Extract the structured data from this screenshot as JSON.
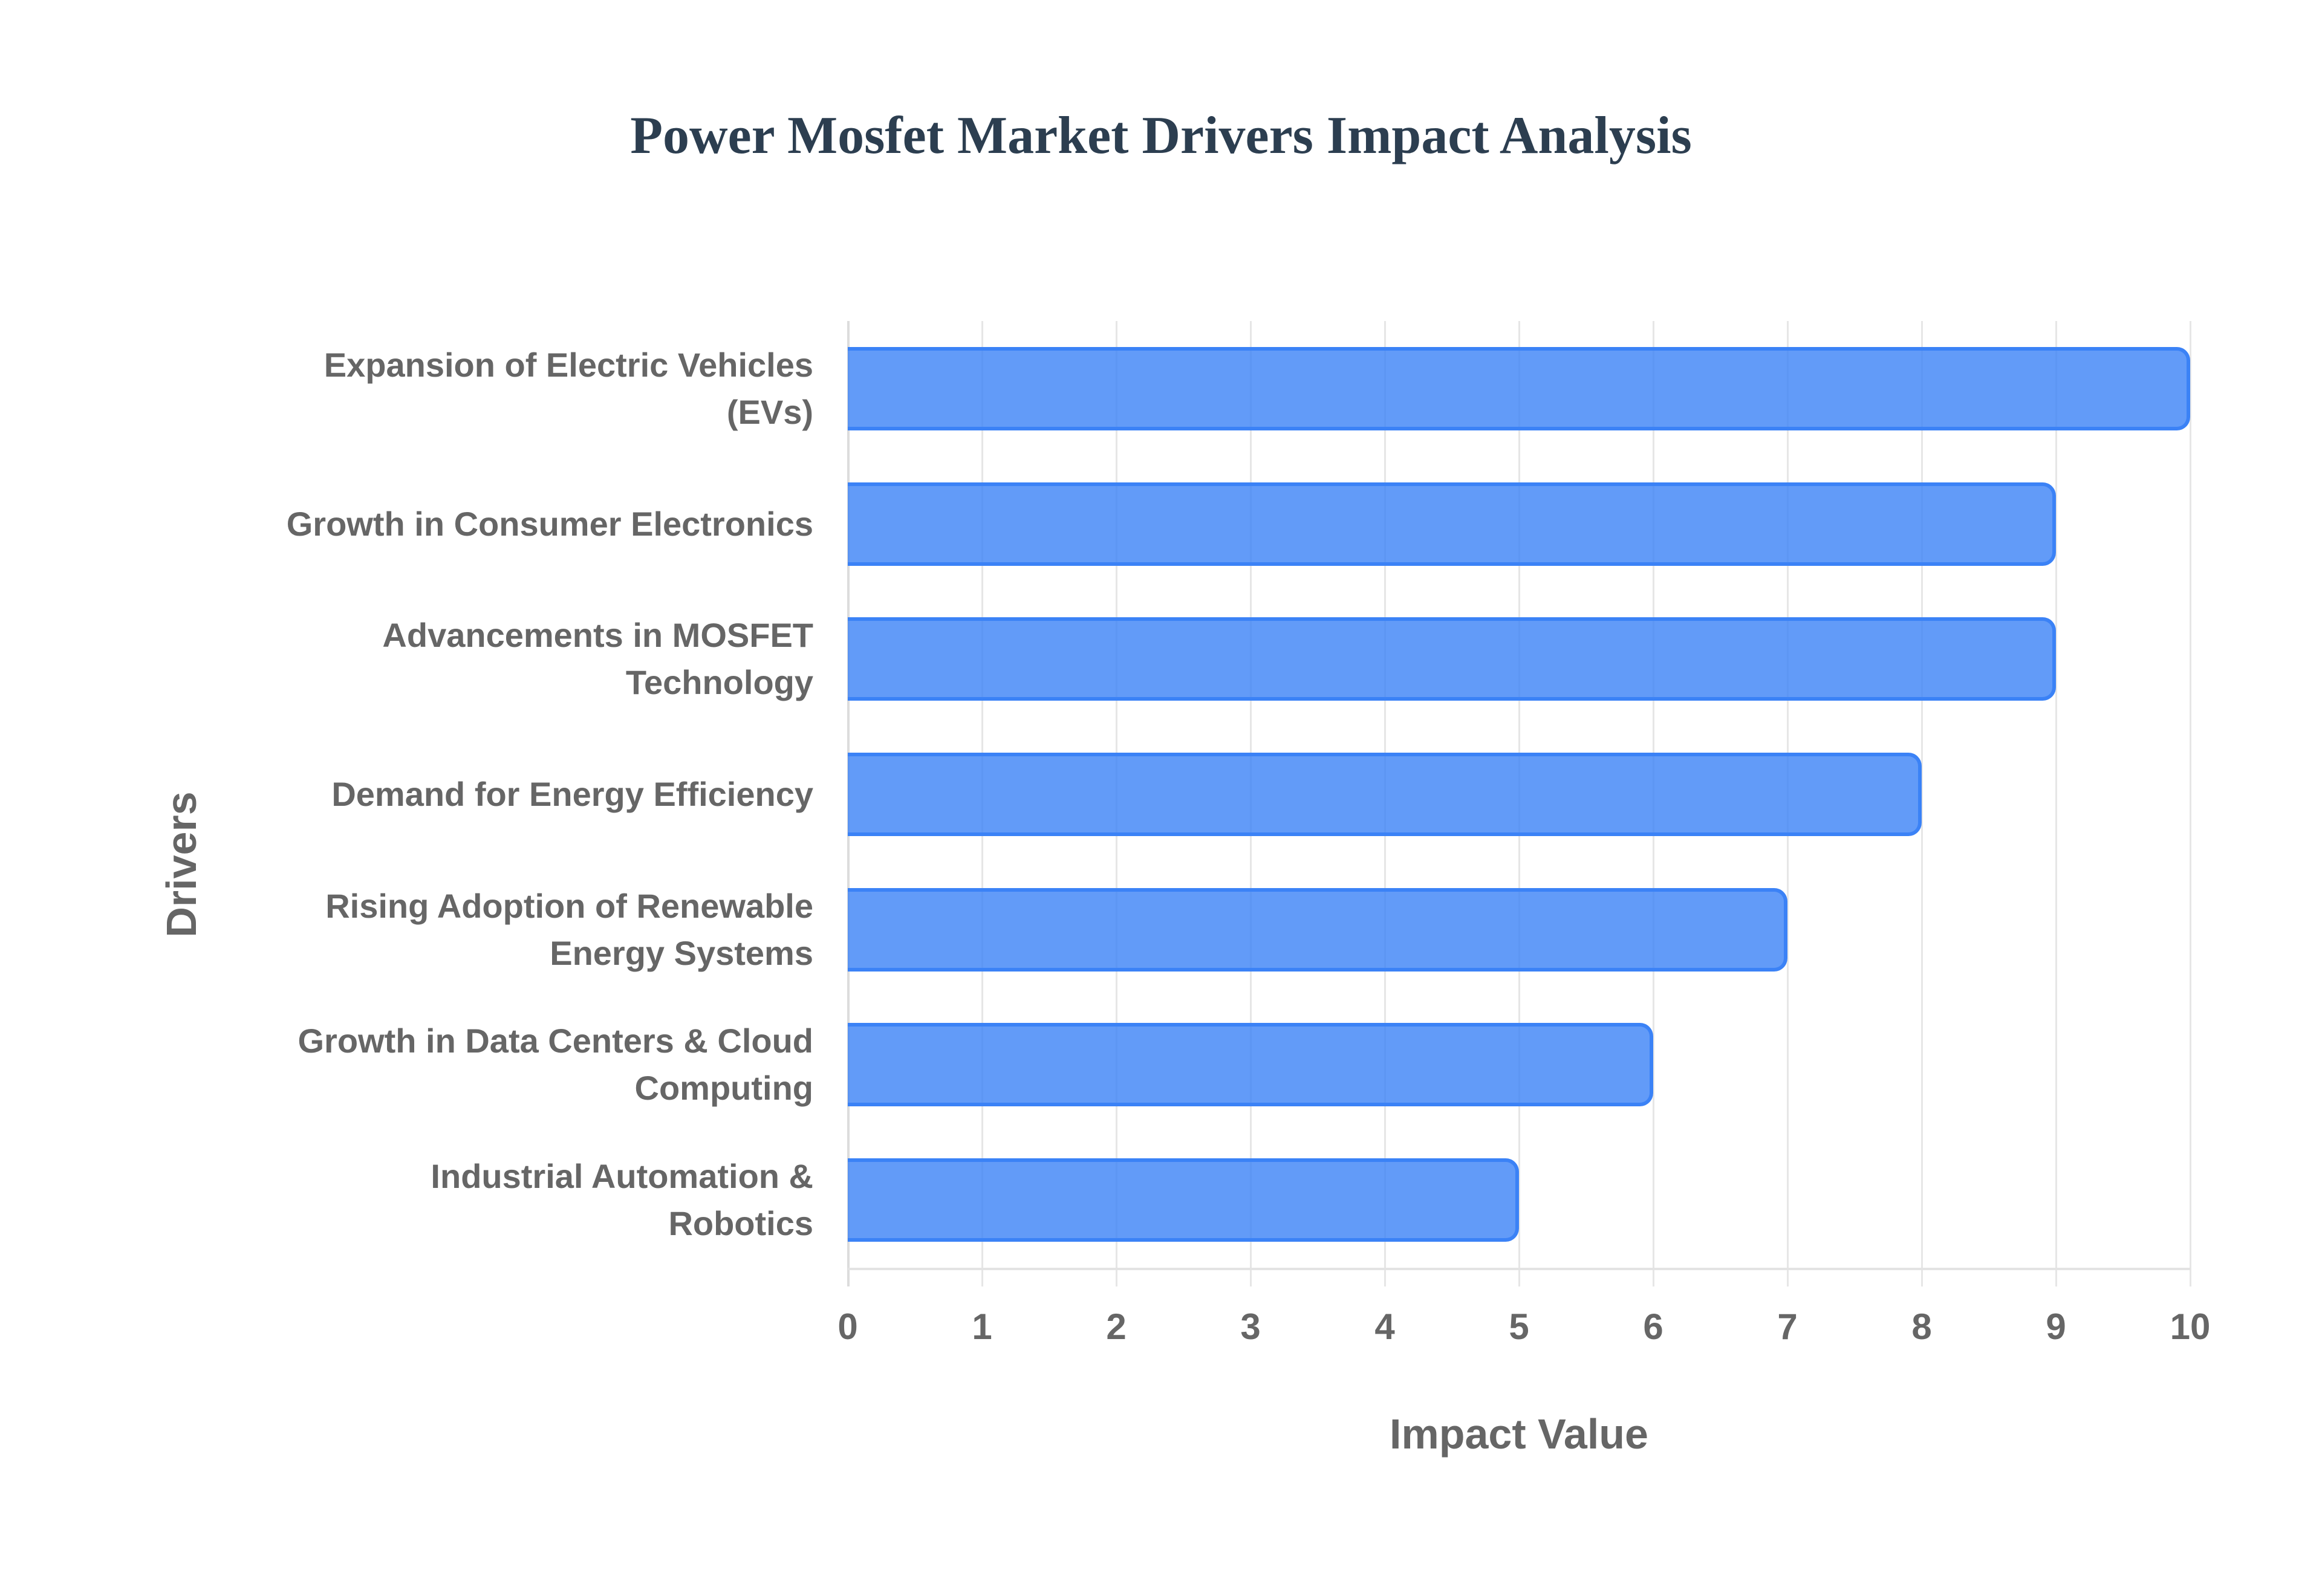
{
  "chart_data": {
    "type": "bar",
    "orientation": "horizontal",
    "title": "Power Mosfet Market Drivers Impact Analysis",
    "xlabel": "Impact Value",
    "ylabel": "Drivers",
    "categories": [
      "Expansion of Electric Vehicles (EVs)",
      "Growth in Consumer Electronics",
      "Advancements in MOSFET Technology",
      "Demand for Energy Efficiency",
      "Rising Adoption of Renewable Energy Systems",
      "Growth in Data Centers & Cloud Computing",
      "Industrial Automation & Robotics"
    ],
    "values": [
      10,
      9,
      9,
      8,
      7,
      6,
      5
    ],
    "xlim": [
      0,
      10
    ],
    "xticks": [
      "0",
      "1",
      "2",
      "3",
      "4",
      "5",
      "6",
      "7",
      "8",
      "9",
      "10"
    ],
    "grid": true,
    "legend": null,
    "colors": {
      "bar_fill": "#6199f5",
      "bar_border": "#3b82f6",
      "title": "#2c3e50",
      "axis_text": "#666666",
      "grid": "#e6e6e6"
    }
  },
  "labels": {
    "y_lines": [
      [
        "Expansion of Electric Vehicles",
        "(EVs)"
      ],
      [
        "Growth in Consumer Electronics"
      ],
      [
        "Advancements in MOSFET",
        "Technology"
      ],
      [
        "Demand for Energy Efficiency"
      ],
      [
        "Rising Adoption of Renewable",
        "Energy Systems"
      ],
      [
        "Growth in Data Centers & Cloud",
        "Computing"
      ],
      [
        "Industrial Automation &",
        "Robotics"
      ]
    ]
  }
}
